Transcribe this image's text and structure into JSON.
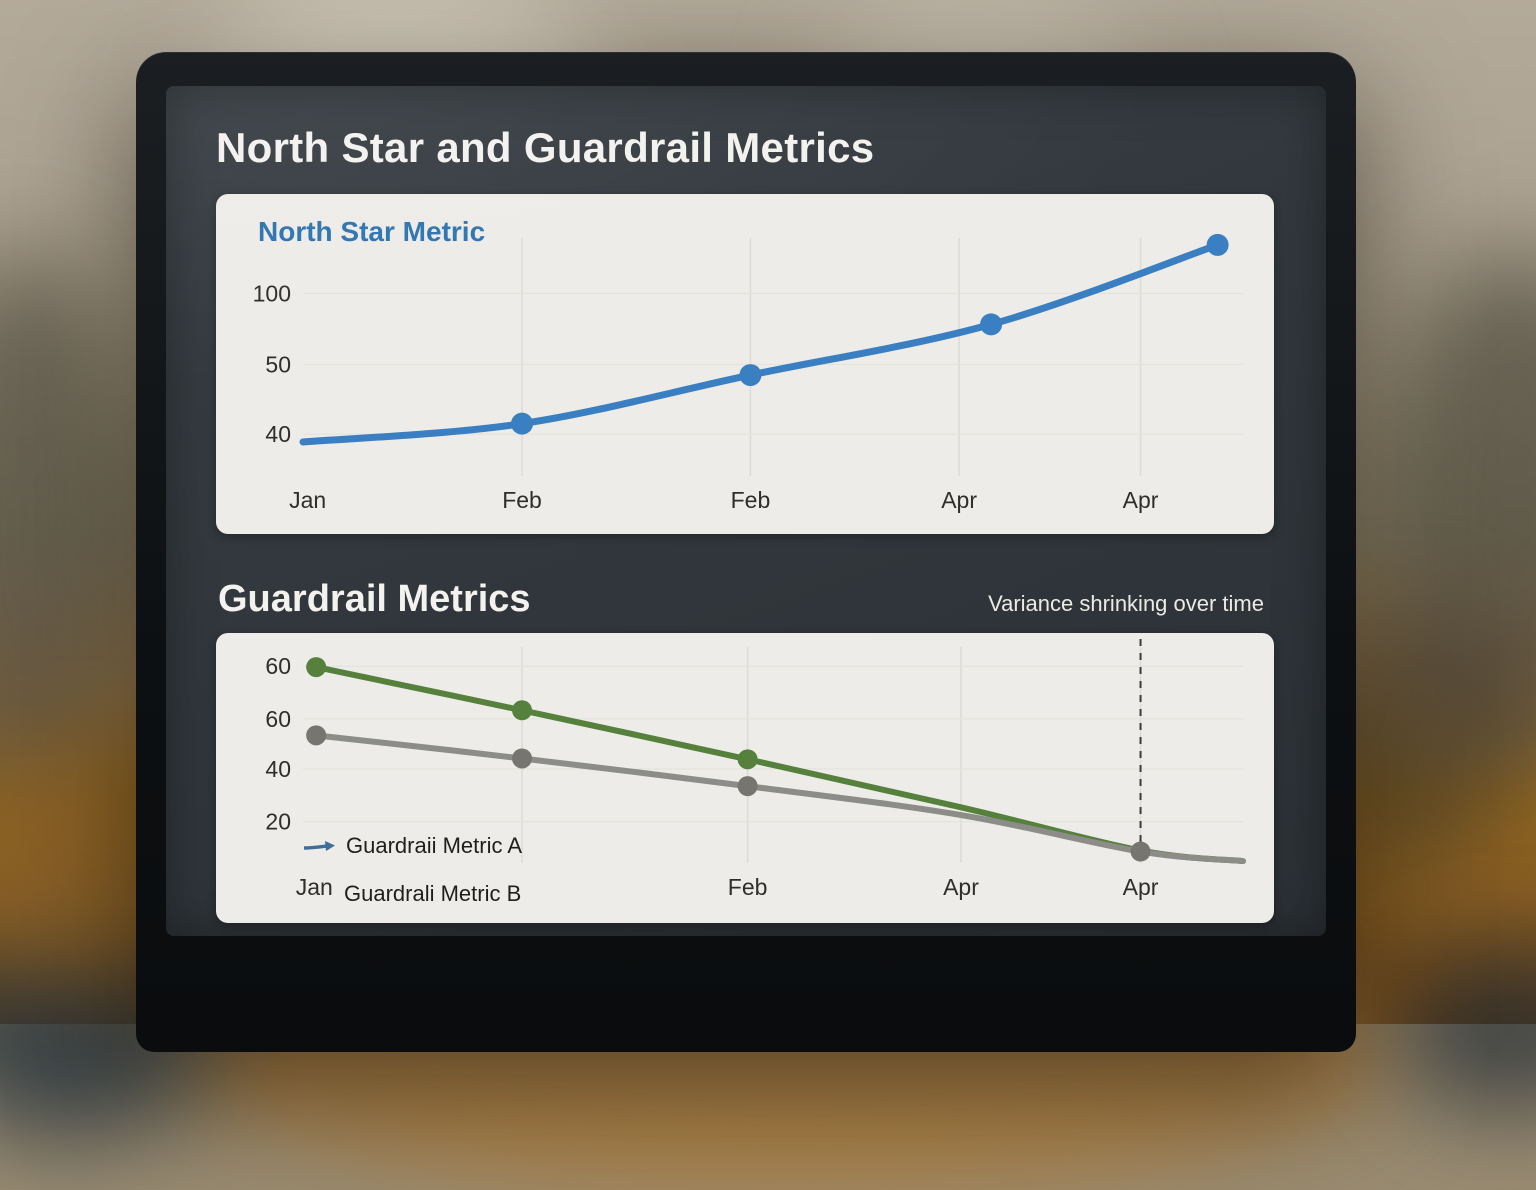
{
  "screen": {
    "title": "North Star and Guardrail Metrics",
    "background_color": "#31373c",
    "card_color": "#edece8"
  },
  "guardrail_section": {
    "heading": "Guardrail Metrics",
    "annotation": "Variance shrinking over time"
  },
  "colors": {
    "north_star_line": "#3a7fc1",
    "guardrail_metric_a_line": "#55813c",
    "guardrail_metric_b_line": "#8c8c88",
    "chart_title_blue": "#2e74b0",
    "legend_arrow": "#3e6d99"
  },
  "chart_data": [
    {
      "type": "line",
      "title": "North Star Metric",
      "x_tick_labels": [
        "Jan",
        "Feb",
        "Feb",
        "Apr",
        "Apr"
      ],
      "x_tick_pos": [
        0.005,
        0.233,
        0.476,
        0.698,
        0.891
      ],
      "y_tick_labels": [
        "100",
        "50",
        "40"
      ],
      "y_tick_pos": [
        0.767,
        0.469,
        0.176
      ],
      "grid_x_pos": [
        0.233,
        0.476,
        0.698,
        0.891
      ],
      "y_units": "fraction-of-plot-height",
      "series": [
        {
          "name": "North Star Metric",
          "color": "#3a7fc1",
          "stroke_width": 7,
          "marker_radius": 11,
          "points": [
            {
              "x": 0.0,
              "y": 0.143,
              "dot": false
            },
            {
              "x": 0.233,
              "y": 0.22,
              "dot": true
            },
            {
              "x": 0.476,
              "y": 0.424,
              "dot": true
            },
            {
              "x": 0.732,
              "y": 0.637,
              "dot": true
            },
            {
              "x": 0.973,
              "y": 0.971,
              "dot": true
            }
          ]
        }
      ]
    },
    {
      "type": "line",
      "title": "Guardrail Metrics",
      "x_tick_labels": [
        "Jan",
        "Feb",
        "Apr",
        "Apr"
      ],
      "x_tick_pos": [
        0.012,
        0.473,
        0.7,
        0.891
      ],
      "y_tick_labels": [
        "60",
        "60",
        "40",
        "20"
      ],
      "y_tick_pos": [
        0.911,
        0.667,
        0.436,
        0.191
      ],
      "grid_x_pos": [
        0.233,
        0.473,
        0.7,
        0.891
      ],
      "dashed_vline_pos": 0.891,
      "y_units": "fraction-of-plot-height",
      "legend": [
        {
          "label": "Guardraii Metric A",
          "marker": "blue-arrow",
          "marker_color": "#3e6d99"
        },
        {
          "label": "Guardrali Metric B",
          "marker": "none",
          "marker_color": ""
        }
      ],
      "series": [
        {
          "name": "Guardraii Metric A",
          "color": "#55813c",
          "stroke_width": 6,
          "marker_radius": 10,
          "points": [
            {
              "x": 0.014,
              "y": 0.907,
              "dot": true
            },
            {
              "x": 0.233,
              "y": 0.707,
              "dot": true
            },
            {
              "x": 0.473,
              "y": 0.48,
              "dot": true
            },
            {
              "x": 0.7,
              "y": 0.258,
              "dot": false
            },
            {
              "x": 0.891,
              "y": 0.058,
              "dot": false
            },
            {
              "x": 1.0,
              "y": 0.009,
              "dot": false
            }
          ]
        },
        {
          "name": "Guardrali Metric B",
          "color": "#8c8c88",
          "stroke_width": 6,
          "marker_radius": 10,
          "marker_color": "#77756f",
          "points": [
            {
              "x": 0.014,
              "y": 0.591,
              "dot": true
            },
            {
              "x": 0.233,
              "y": 0.484,
              "dot": true
            },
            {
              "x": 0.473,
              "y": 0.356,
              "dot": true
            },
            {
              "x": 0.7,
              "y": 0.222,
              "dot": false
            },
            {
              "x": 0.891,
              "y": 0.053,
              "dot": true
            },
            {
              "x": 1.0,
              "y": 0.009,
              "dot": false
            }
          ]
        }
      ]
    }
  ]
}
